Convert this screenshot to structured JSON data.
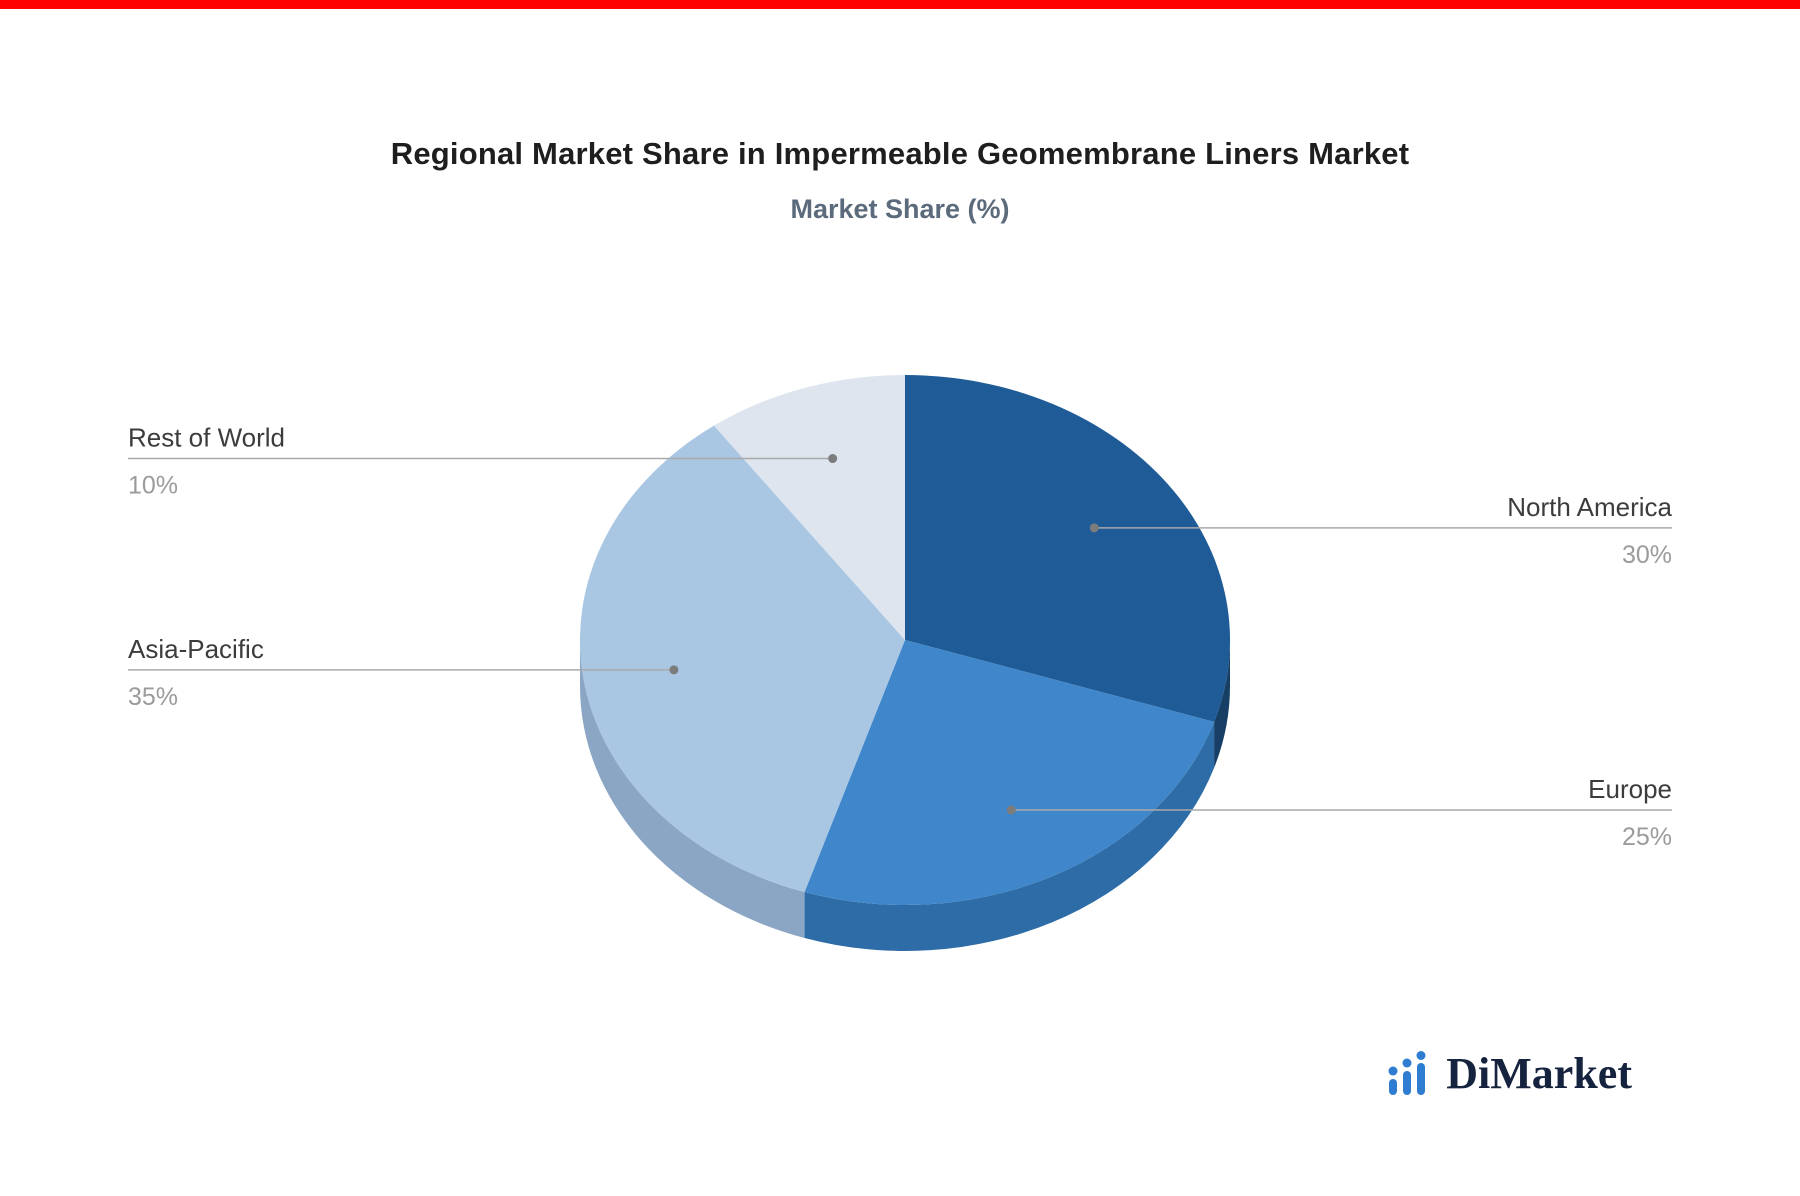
{
  "page": {
    "accent_bar_color": "#fe0000",
    "background": "#ffffff"
  },
  "chart_data": {
    "type": "pie",
    "title": "Regional Market Share in Impermeable Geomembrane Liners Market",
    "subtitle": "Market Share (%)",
    "labels": [
      "North America",
      "Europe",
      "Asia-Pacific",
      "Rest of World"
    ],
    "values": [
      30,
      25,
      35,
      10
    ],
    "value_labels": [
      "30%",
      "25%",
      "35%",
      "10%"
    ],
    "colors": [
      "#1e5b97",
      "#3f87ca",
      "#a9c6e3",
      "#dee5ef"
    ],
    "side_colors": [
      "#173f66",
      "#2d6ca6",
      "#8ba6c4",
      "#b9c4d6"
    ],
    "start_angle_deg": -90,
    "direction": "clockwise",
    "effect": "3d",
    "legend": "none",
    "leader_line_color": "#a9a9a9",
    "dot_color": "#7c7c7c",
    "label_color": "#3c3c3c",
    "value_color": "#9b9b9b",
    "title_color": "#1e1e1e",
    "subtitle_color": "#5b6b7c"
  },
  "logo": {
    "text": "DiMarket",
    "icon": "bar-chart-icon",
    "text_color": "#16233e",
    "icon_color": "#2e7dd1"
  }
}
